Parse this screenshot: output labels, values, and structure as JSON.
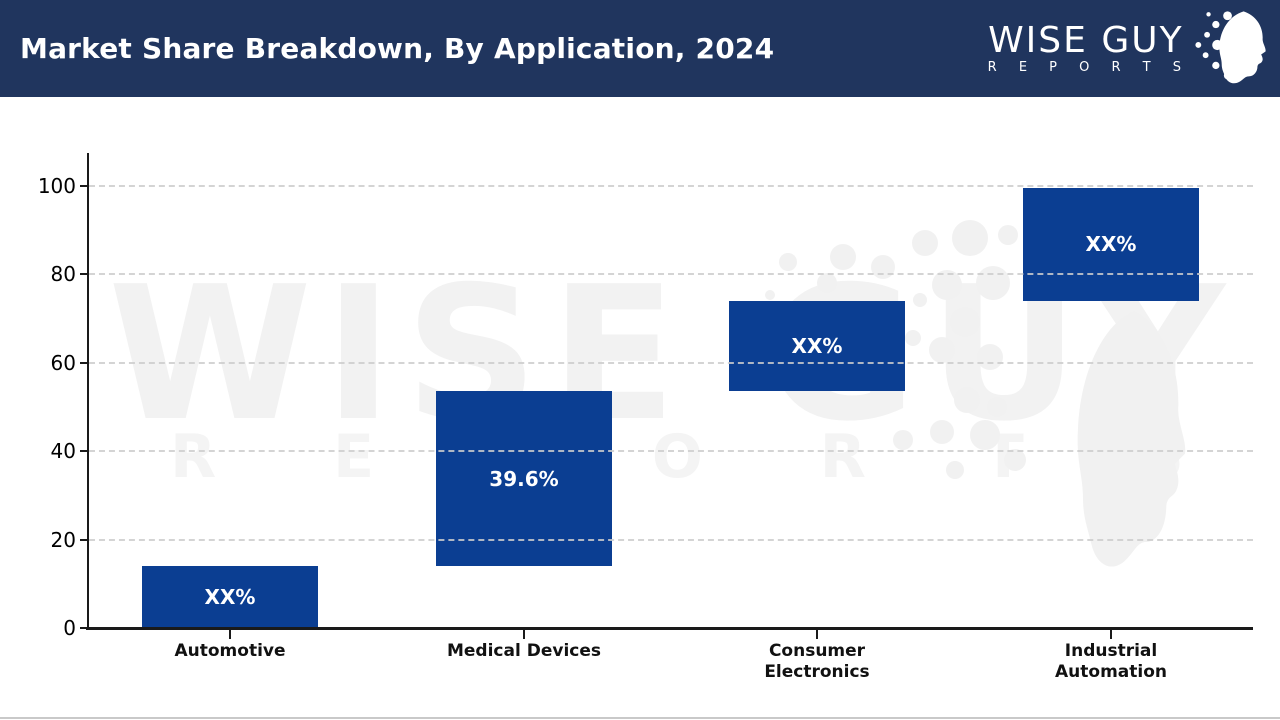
{
  "header": {
    "title": "Market Share Breakdown, By Application, 2024",
    "logo": {
      "line1": "WISE GUY",
      "line2": "R E P O R T S"
    }
  },
  "watermark": {
    "line1": "WISE GUY",
    "line2": "R E P O R T S"
  },
  "chart_data": {
    "type": "bar",
    "subtype": "waterfall-floating-segments",
    "title": "Market Share Breakdown, By Application, 2024",
    "categories": [
      "Automotive",
      "Medical Devices",
      "Consumer Electronics",
      "Industrial Automation"
    ],
    "categories_display": [
      [
        "Automotive"
      ],
      [
        "Medical Devices"
      ],
      [
        "Consumer",
        "Electronics"
      ],
      [
        "Industrial",
        "Automation"
      ]
    ],
    "bars": [
      {
        "category": "Automotive",
        "start": 0,
        "end": 14,
        "label": "XX%"
      },
      {
        "category": "Medical Devices",
        "start": 14,
        "end": 53.6,
        "label": "39.6%",
        "value": 39.6
      },
      {
        "category": "Consumer Electronics",
        "start": 53.6,
        "end": 74,
        "label": "XX%"
      },
      {
        "category": "Industrial Automation",
        "start": 74,
        "end": 99.6,
        "label": "XX%"
      }
    ],
    "yticks": [
      0,
      20,
      40,
      60,
      80,
      100
    ],
    "ylim": [
      0,
      107
    ],
    "xlabel": "",
    "ylabel": "",
    "grid": "horizontal-dashed-above-bars",
    "legend": "none",
    "bar_color": "#0b3e92",
    "bar_label_color": "#ffffff",
    "axis_color": "#1a1a1a",
    "grid_color": "#d4d4d4",
    "header_bg": "#20355e",
    "watermark_color": "#f2f2f2"
  }
}
